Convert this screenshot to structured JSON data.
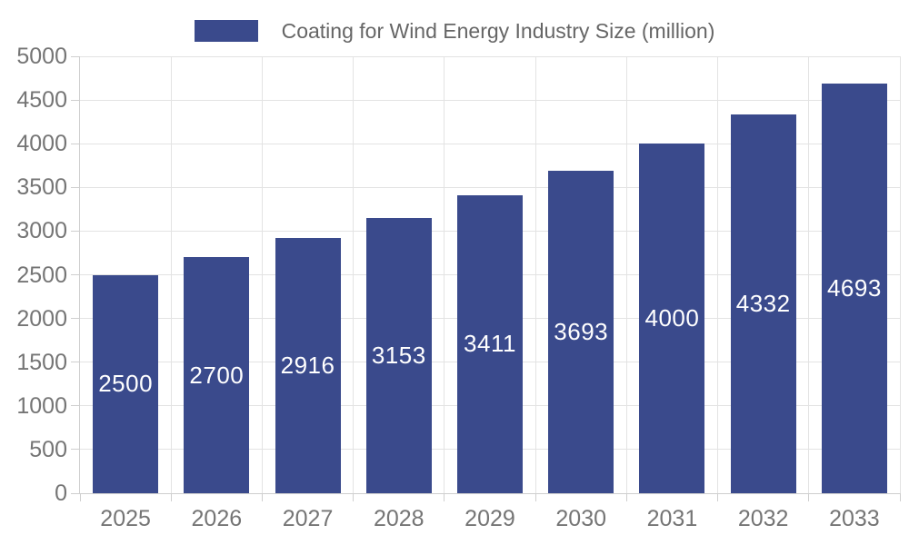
{
  "legend": {
    "label": "Coating for Wind Energy Industry Size (million)"
  },
  "chart_data": {
    "type": "bar",
    "title": "Coating for Wind Energy Industry Size (million)",
    "categories": [
      "2025",
      "2026",
      "2027",
      "2028",
      "2029",
      "2030",
      "2031",
      "2032",
      "2033"
    ],
    "values": [
      2500,
      2700,
      2916,
      3153,
      3411,
      3693,
      4000,
      4332,
      4693
    ],
    "series": [
      {
        "name": "Coating for Wind Energy Industry Size (million)",
        "values": [
          2500,
          2700,
          2916,
          3153,
          3411,
          3693,
          4000,
          4332,
          4693
        ]
      }
    ],
    "xlabel": "",
    "ylabel": "",
    "ylim": [
      0,
      5000
    ],
    "ytick_step": 500,
    "ytick_labels": [
      "0",
      "500",
      "1000",
      "1500",
      "2000",
      "2500",
      "3000",
      "3500",
      "4000",
      "4500",
      "5000"
    ],
    "grid": true,
    "bar_value_labels_visible": true,
    "legend_position": "top-center",
    "colors": {
      "bar": "#3A4A8C",
      "bar_label": "#FFFFFF",
      "axis_line": "#CFCFCF",
      "gridline": "#E3E3E3",
      "tick_label": "#757575",
      "legend_text": "#666666",
      "background": "#FFFFFF"
    }
  }
}
